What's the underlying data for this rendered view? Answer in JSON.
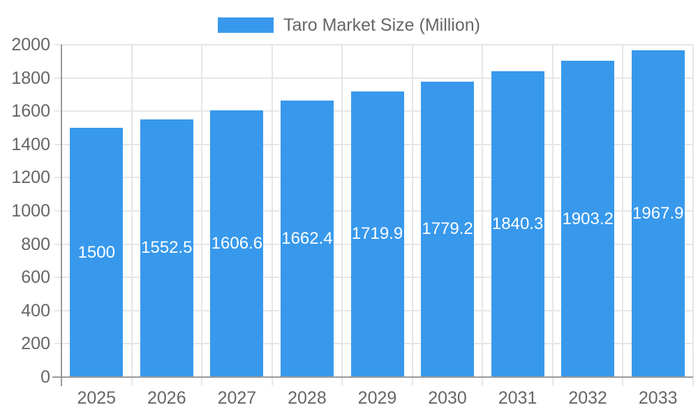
{
  "chart_data": {
    "type": "bar",
    "title": "",
    "legend": "Taro Market Size (Million)",
    "categories": [
      "2025",
      "2026",
      "2027",
      "2028",
      "2029",
      "2030",
      "2031",
      "2032",
      "2033"
    ],
    "values": [
      1500,
      1552.5,
      1606.6,
      1662.4,
      1719.9,
      1779.2,
      1840.3,
      1903.2,
      1967.9
    ],
    "value_labels": [
      "1500",
      "1552.5",
      "1606.6",
      "1662.4",
      "1719.9",
      "1779.2",
      "1840.3",
      "1903.2",
      "1967.9"
    ],
    "xlabel": "",
    "ylabel": "",
    "ylim": [
      0,
      2000
    ],
    "ytick_step": 200,
    "ytick_labels": [
      "0",
      "200",
      "400",
      "600",
      "800",
      "1000",
      "1200",
      "1400",
      "1600",
      "1800",
      "2000"
    ],
    "grid": true,
    "legend_position": "top",
    "colors": {
      "bar": "#3899ec",
      "grid": "#e6e6e6",
      "axis": "#9a9a9a",
      "tick_label": "#666666",
      "value_label": "#ffffff",
      "background": "#ffffff"
    }
  }
}
